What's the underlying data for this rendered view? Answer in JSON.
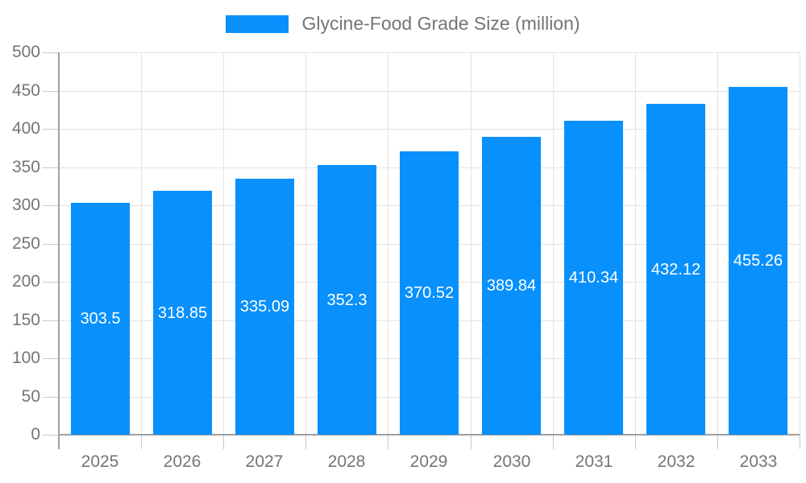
{
  "legend": {
    "label": "Glycine-Food Grade Size (million)"
  },
  "chart_data": {
    "type": "bar",
    "title": "Glycine-Food Grade Size (million)",
    "categories": [
      "2025",
      "2026",
      "2027",
      "2028",
      "2029",
      "2030",
      "2031",
      "2032",
      "2033"
    ],
    "series": [
      {
        "name": "Glycine-Food Grade Size (million)",
        "values": [
          303.5,
          318.85,
          335.09,
          352.3,
          370.52,
          389.84,
          410.34,
          432.12,
          455.26
        ],
        "color": "#0890fc"
      }
    ],
    "value_labels": [
      "303.5",
      "318.85",
      "335.09",
      "352.3",
      "370.52",
      "389.84",
      "410.34",
      "432.12",
      "455.26"
    ],
    "xlabel": "",
    "ylabel": "",
    "ylim": [
      0,
      500
    ],
    "ytick_step": 50,
    "yticks": [
      0,
      50,
      100,
      150,
      200,
      250,
      300,
      350,
      400,
      450,
      500
    ],
    "grid": true,
    "legend_position": "top-center",
    "value_label_position": "inside-middle",
    "colors": {
      "bar": "#0890fc",
      "grid": "#e3e3e3",
      "axis": "#a0a0a0",
      "tick": "#c8c8c8",
      "label_text": "#757575",
      "value_text": "#ffffff",
      "background": "#ffffff"
    }
  }
}
